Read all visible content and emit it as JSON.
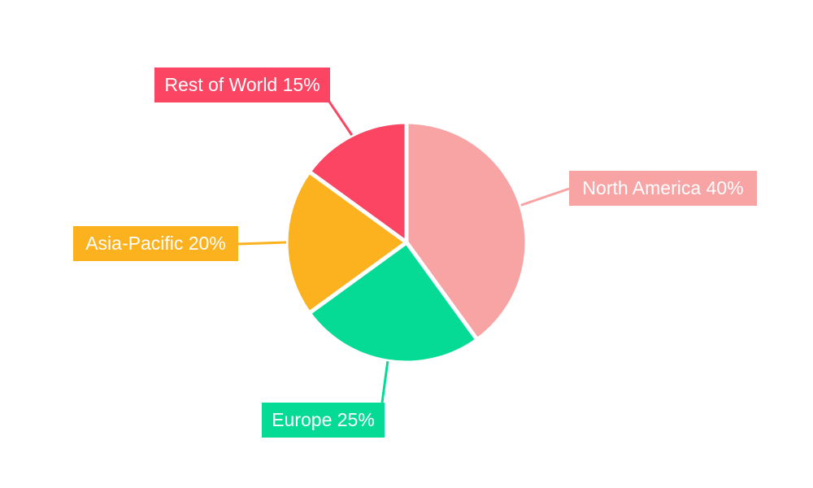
{
  "chart_data": {
    "type": "pie",
    "title": "",
    "start_angle_deg": 0,
    "direction": "clockwise",
    "background": "#ffffff",
    "label_text_color": "#ffffff",
    "slice_gap_color": "#ffffff",
    "categories": [
      "North America",
      "Europe",
      "Asia-Pacific",
      "Rest of World"
    ],
    "values": [
      40,
      25,
      20,
      15
    ],
    "unit": "%",
    "slices": [
      {
        "label": "North America",
        "value": 40,
        "display": "North America 40%",
        "color": "#F8A3A4"
      },
      {
        "label": "Europe",
        "value": 25,
        "display": "Europe 25%",
        "color": "#06DB95"
      },
      {
        "label": "Asia-Pacific",
        "value": 20,
        "display": "Asia-Pacific 20%",
        "color": "#FCB11E"
      },
      {
        "label": "Rest of World",
        "value": 15,
        "display": "Rest of World 15%",
        "color": "#FB4562"
      }
    ],
    "legend": "none",
    "labels_style": "external-callouts-with-leader-lines"
  }
}
